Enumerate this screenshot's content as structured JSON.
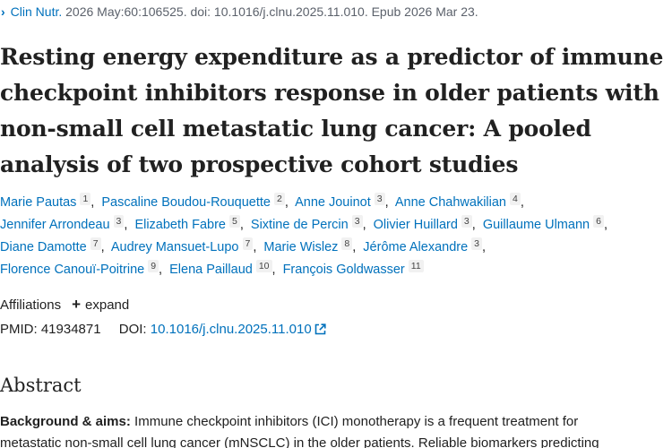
{
  "citation": {
    "chevron": "›",
    "journal": "Clin Nutr.",
    "details": " 2026 May:60:106525. doi: 10.1016/j.clnu.2025.11.010. Epub 2026 Mar 23."
  },
  "title_lines": [
    "Resting energy expenditure as a predictor of immune",
    "checkpoint inhibitors response in older patients with",
    "non-small cell metastatic lung cancer: A pooled",
    "analysis of two prospective cohort studies"
  ],
  "authors": {
    "line1": [
      {
        "name": "Marie Pautas",
        "sup": "1"
      },
      {
        "name": "Pascaline Boudou-Rouquette",
        "sup": "2"
      },
      {
        "name": "Anne Jouinot",
        "sup": "3"
      },
      {
        "name": "Anne Chahwakilian",
        "sup": "4"
      }
    ],
    "line2": [
      {
        "name": "Jennifer Arrondeau",
        "sup": "3"
      },
      {
        "name": "Elizabeth Fabre",
        "sup": "5"
      },
      {
        "name": "Sixtine de Percin",
        "sup": "3"
      },
      {
        "name": "Olivier Huillard",
        "sup": "3"
      },
      {
        "name": "Guillaume Ulmann",
        "sup": "6"
      }
    ],
    "line3": [
      {
        "name": "Diane Damotte",
        "sup": "7"
      },
      {
        "name": "Audrey Mansuet-Lupo",
        "sup": "7"
      },
      {
        "name": "Marie Wislez",
        "sup": "8"
      },
      {
        "name": "Jérôme Alexandre",
        "sup": "3"
      }
    ],
    "line4": [
      {
        "name": "Florence Canouï-Poitrine",
        "sup": "9"
      },
      {
        "name": "Elena Paillaud",
        "sup": "10"
      },
      {
        "name": "François Goldwasser",
        "sup": "11"
      }
    ]
  },
  "affiliations": {
    "label": "Affiliations",
    "plus": "+",
    "expand_label": "expand"
  },
  "identifiers": {
    "pmid_label": "PMID:",
    "pmid": "41934871",
    "doi_label": "DOI:",
    "doi": "10.1016/j.clnu.2025.11.010"
  },
  "abstract": {
    "heading": "Abstract",
    "bg_label": "Background & aims:",
    "line1_rest": " Immune checkpoint inhibitors (ICI) monotherapy is a frequent treatment for",
    "line2": "metastatic non-small cell lung cancer (mNSCLC) in the older patients. Reliable biomarkers predicting"
  },
  "icons": {
    "chevron": "chevron-right-icon",
    "external_link": "external-link-icon",
    "plus": "plus-icon"
  },
  "colors": {
    "link": "#0071bc",
    "text": "#212121",
    "muted": "#5b616b",
    "sup_bg": "#f1f1f1"
  }
}
